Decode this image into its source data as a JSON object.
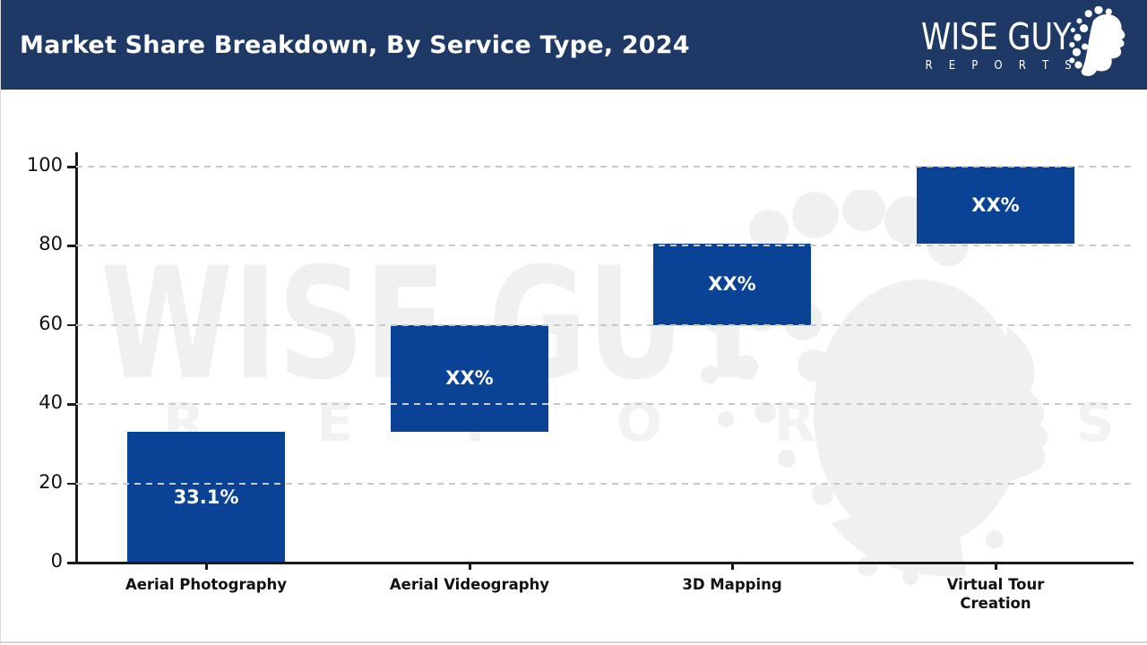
{
  "header": {
    "title": "Market Share Breakdown, By Service Type, 2024",
    "background": "#1f3967",
    "logo": {
      "brand": "WISE GUY",
      "tagline": "R E P O R T S"
    }
  },
  "watermark": {
    "line1": "WISE GUY",
    "line2": "R E P O R T S"
  },
  "chart_data": {
    "type": "bar",
    "variant": "waterfall",
    "title": "Market Share Breakdown, By Service Type, 2024",
    "categories": [
      "Aerial Photography",
      "Aerial Videography",
      "3D Mapping",
      "Virtual Tour Creation"
    ],
    "category_labels": [
      "Aerial Photography",
      "Aerial Videography",
      "3D Mapping",
      "Virtual Tour\nCreation"
    ],
    "segments": [
      {
        "category": "Aerial Photography",
        "start": 0,
        "end": 33.1,
        "value": 33.1,
        "label": "33.1%"
      },
      {
        "category": "Aerial Videography",
        "start": 33.1,
        "end": 60.0,
        "value": 26.9,
        "label": "XX%"
      },
      {
        "category": "3D Mapping",
        "start": 60.0,
        "end": 80.5,
        "value": 20.5,
        "label": "XX%"
      },
      {
        "category": "Virtual Tour Creation",
        "start": 80.5,
        "end": 100.0,
        "value": 19.5,
        "label": "XX%"
      }
    ],
    "yticks": [
      0,
      20,
      40,
      60,
      80,
      100
    ],
    "ylim": [
      0,
      104
    ],
    "xlabel": "",
    "ylabel": "",
    "grid": "horizontal-dashed",
    "legend": "none",
    "colors": {
      "bar": "#0a4296",
      "bar_label": "#ffffff",
      "grid": "#c9c9c9",
      "axis": "#1a1a1a",
      "tick_label": "#111111"
    }
  }
}
